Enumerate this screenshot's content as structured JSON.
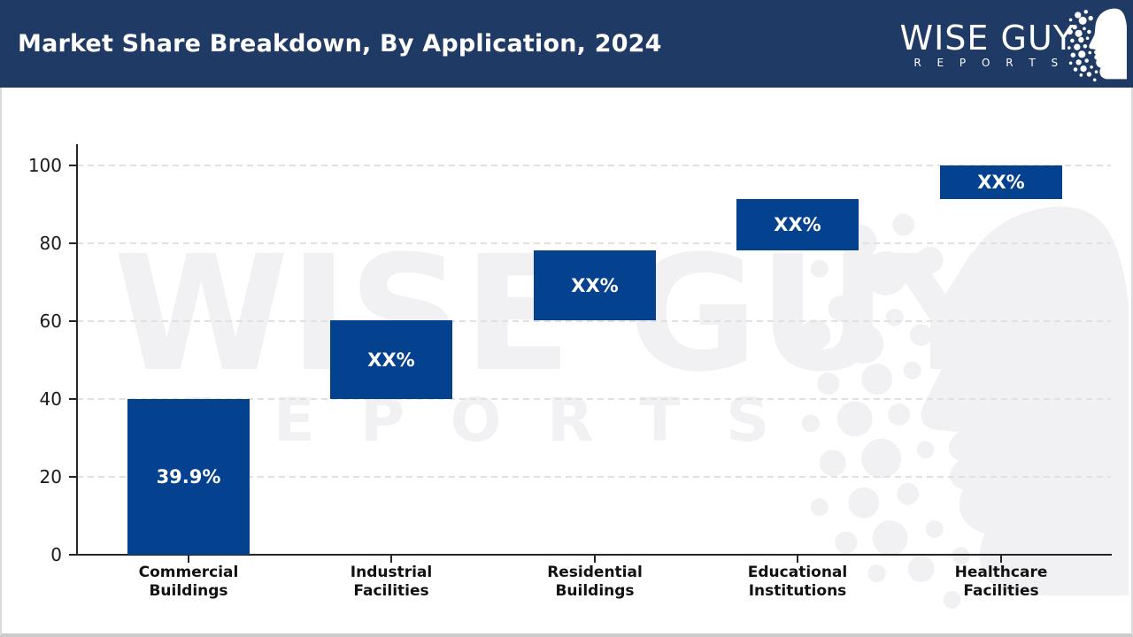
{
  "header": {
    "title": "Market Share Breakdown, By Application, 2024",
    "logo": {
      "name": "WISE GUY",
      "sub": "R E P O R T S"
    }
  },
  "watermark": {
    "line1": "WISE GUY",
    "line2": "R E P O R T S"
  },
  "chart_data": {
    "type": "bar",
    "subtype": "waterfall",
    "title": "Market Share Breakdown, By Application, 2024",
    "categories": [
      "Commercial\nBuildings",
      "Industrial\nFacilities",
      "Residential\nBuildings",
      "Educational\nInstitutions",
      "Healthcare\nFacilities"
    ],
    "segments": [
      {
        "category": "Commercial Buildings",
        "start": 0,
        "end": 39.9,
        "value": 39.9,
        "label": "39.9%"
      },
      {
        "category": "Industrial Facilities",
        "start": 39.9,
        "end": 60.2,
        "value": 20.3,
        "label": "XX%"
      },
      {
        "category": "Residential Buildings",
        "start": 60.2,
        "end": 78.2,
        "value": 18.0,
        "label": "XX%"
      },
      {
        "category": "Educational Institutions",
        "start": 78.2,
        "end": 91.4,
        "value": 13.2,
        "label": "XX%"
      },
      {
        "category": "Healthcare Facilities",
        "start": 91.4,
        "end": 100,
        "value": 8.6,
        "label": "XX%"
      }
    ],
    "yticks": [
      0,
      20,
      40,
      60,
      80,
      100
    ],
    "ylim": [
      0,
      104
    ],
    "grid": true,
    "legend": false,
    "bar_color": "#04418f",
    "bar_label_color": "#ffffff"
  },
  "colors": {
    "header_bg": "#1f3a64",
    "bar": "#04418f",
    "watermark": "#f1f1f3",
    "gridline": "#e1e1e1",
    "axis": "#262626"
  }
}
